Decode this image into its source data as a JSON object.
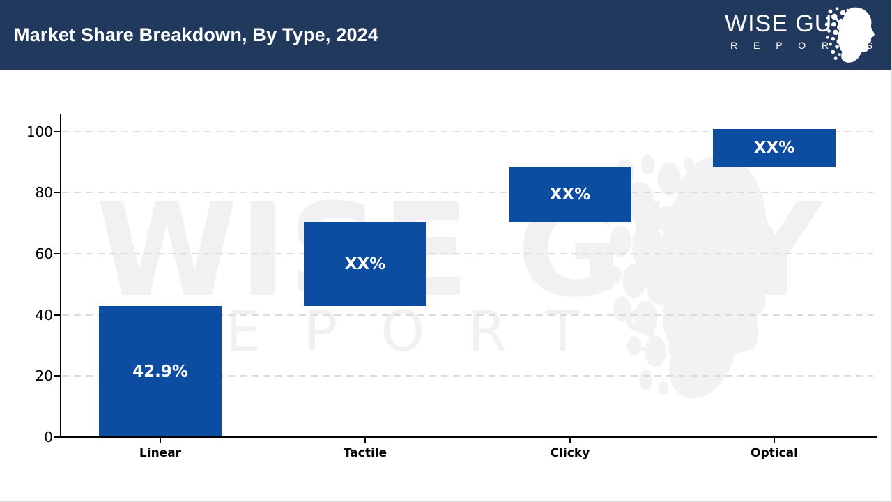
{
  "header": {
    "title": "Market Share Breakdown, By Type, 2024",
    "logo": {
      "brand": "WISE GUY",
      "brand_sub": "R E P O R T S"
    }
  },
  "watermark": {
    "line1": "WISE GUY",
    "line2": "REPORTS"
  },
  "chart_data": {
    "type": "bar",
    "subtype": "waterfall",
    "title": "Market Share Breakdown, By Type, 2024",
    "categories": [
      "Linear",
      "Tactile",
      "Clicky",
      "Optical"
    ],
    "segments": [
      {
        "category": "Linear",
        "start": 0,
        "end": 42.9,
        "label": "42.9%"
      },
      {
        "category": "Tactile",
        "start": 42.9,
        "end": 70.3,
        "label": "XX%"
      },
      {
        "category": "Clicky",
        "start": 70.3,
        "end": 88.5,
        "label": "XX%"
      },
      {
        "category": "Optical",
        "start": 88.5,
        "end": 100.7,
        "label": "XX%"
      }
    ],
    "yticks": [
      "0",
      "20",
      "40",
      "60",
      "80",
      "100"
    ],
    "ylim": [
      0,
      105
    ],
    "xlabel": "",
    "ylabel": "",
    "grid": "horizontal-dashed",
    "legend": "none"
  },
  "colors": {
    "header_bg": "#22395E",
    "title_text": "#FFFFFF",
    "bar": "#0C4DA2",
    "bar_label": "#FFFFFF",
    "axis": "#000000",
    "grid": "#DCDCDC",
    "watermark": "#F2F2F4"
  }
}
